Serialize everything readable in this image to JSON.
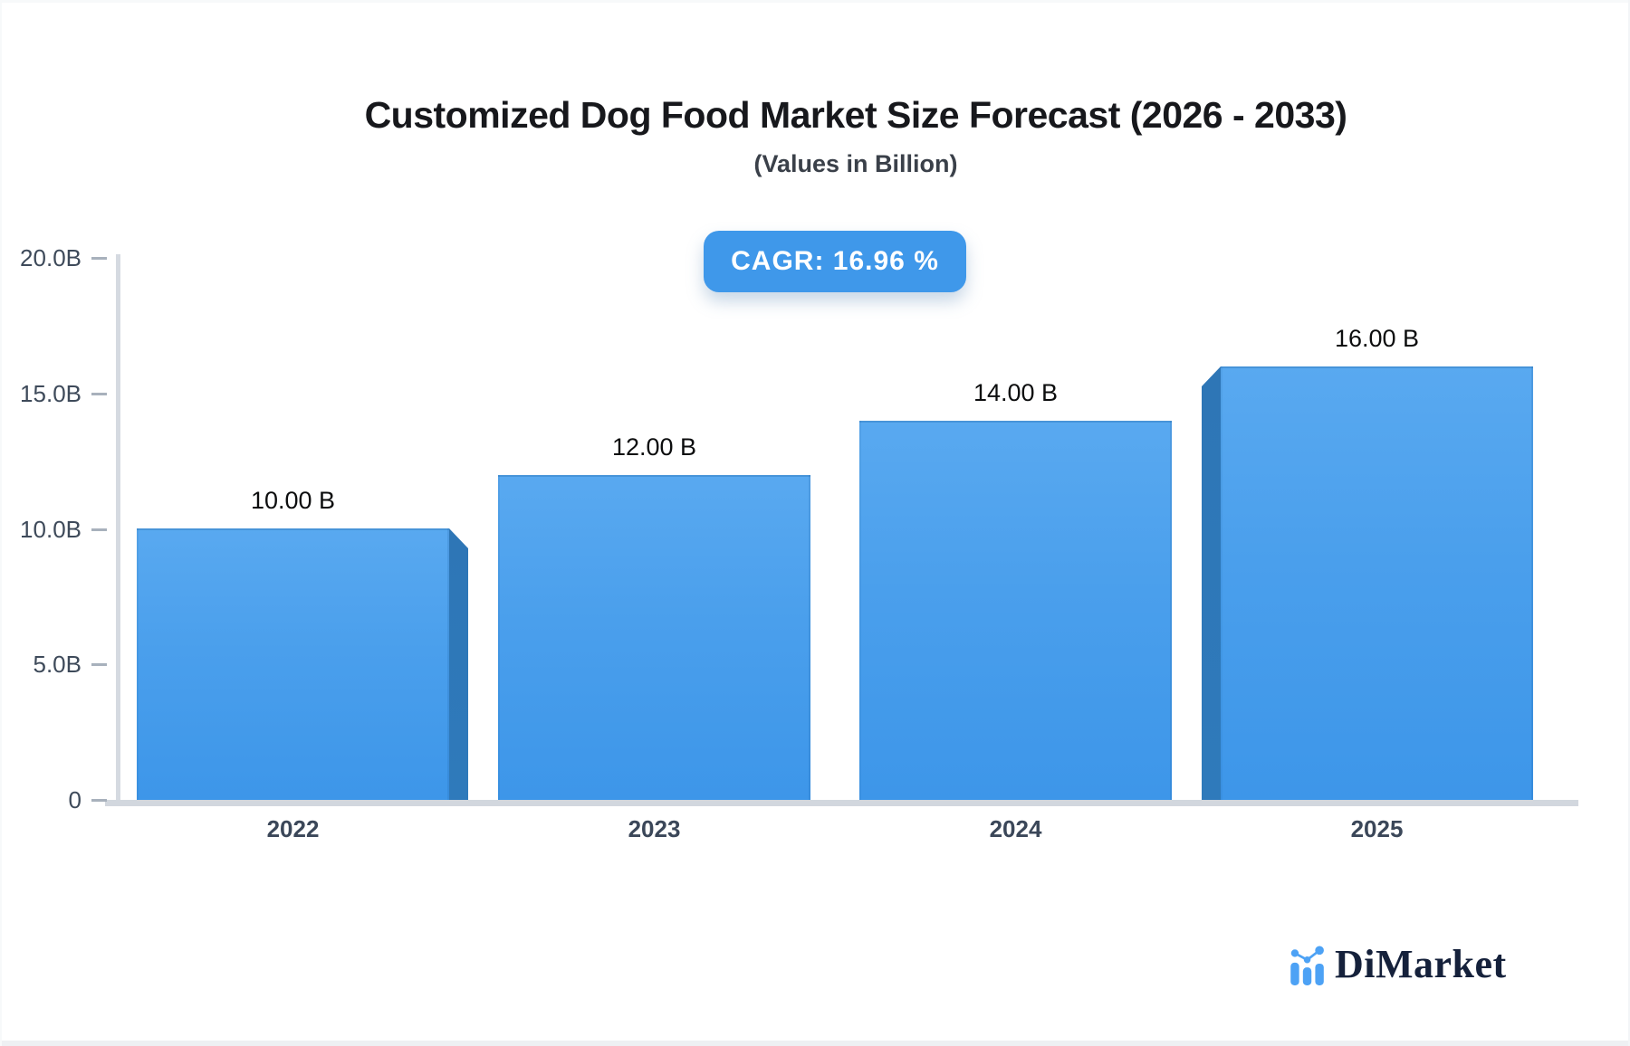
{
  "header": {
    "title": "Customized Dog Food Market Size Forecast (2026 - 2033)",
    "subtitle": "(Values in Billion)",
    "cagr_badge": "CAGR: 16.96 %",
    "badge_color": "#3f98ea"
  },
  "chart_data": {
    "type": "bar",
    "title": "Customized Dog Food Market Size Forecast (2026 - 2033)",
    "subtitle": "(Values in Billion)",
    "cagr": "16.96 %",
    "unit": "Billion",
    "categories": [
      "2022",
      "2023",
      "2024",
      "2025"
    ],
    "values": [
      10,
      12,
      14,
      16
    ],
    "value_labels": [
      "10.00 B",
      "12.00 B",
      "14.00 B",
      "16.00 B"
    ],
    "ylim": [
      0,
      20
    ],
    "y_ticks": [
      {
        "value": 20,
        "label": "20.0B"
      },
      {
        "value": 15,
        "label": "15.0B"
      },
      {
        "value": 10,
        "label": "10.0B"
      },
      {
        "value": 5,
        "label": "5.0B"
      },
      {
        "value": 0,
        "label": "0"
      }
    ],
    "grid": false,
    "legend": false,
    "bar_color_top": "#59a9f0",
    "bar_color_bottom": "#3d96e9",
    "bar_side_color": "#2e76b6",
    "axis_color": "#d2d7de",
    "tick_label_color": "#3e4a5a"
  },
  "branding": {
    "logo_text": "DiMarket",
    "logo_icon": "mini-bar-line-chart-icon",
    "logo_text_color": "#15213b",
    "logo_icon_color": "#4da2f5"
  }
}
